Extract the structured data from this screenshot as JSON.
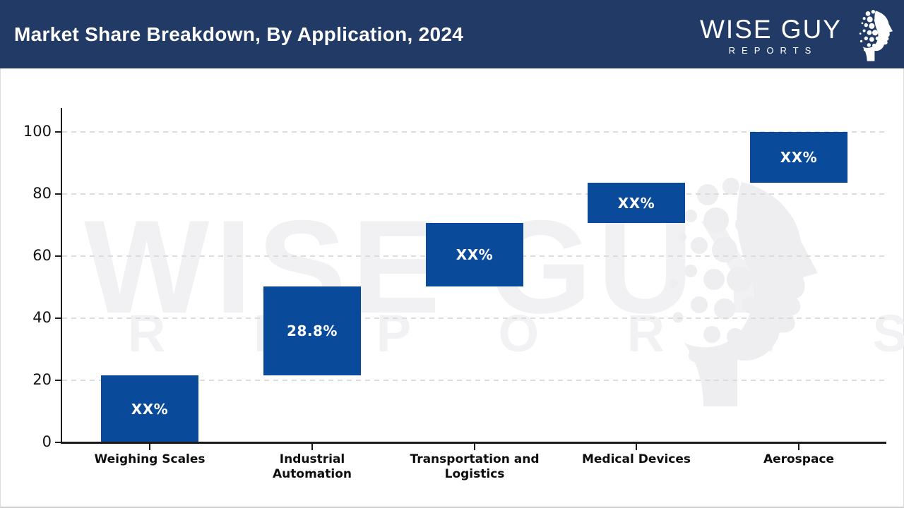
{
  "header": {
    "title": "Market Share Breakdown, By Application, 2024",
    "bg_color": "#213a66"
  },
  "logo": {
    "line1": "WISE GUY",
    "line2": "REPORTS"
  },
  "watermark": {
    "line1": "WISE GUY",
    "line2": "R E P O R T S"
  },
  "chart_data": {
    "type": "bar",
    "subtype": "waterfall",
    "title": "Market Share Breakdown, By Application, 2024",
    "xlabel": "",
    "ylabel": "",
    "ylim": [
      0,
      100
    ],
    "yticks": [
      0,
      20,
      40,
      60,
      80,
      100
    ],
    "grid": "horizontal dashed",
    "legend": "none",
    "bar_color": "#0a4a9b",
    "categories": [
      "Weighing Scales",
      "Industrial Automation",
      "Transportation and Logistics",
      "Medical Devices",
      "Aerospace"
    ],
    "category_display": [
      "Weighing Scales",
      "Industrial\nAutomation",
      "Transportation and\nLogistics",
      "Medical Devices",
      "Aerospace"
    ],
    "segments": [
      {
        "category": "Weighing Scales",
        "start": 0,
        "end": 21.5,
        "label": "XX%"
      },
      {
        "category": "Industrial Automation",
        "start": 21.5,
        "end": 50.3,
        "label": "28.8%"
      },
      {
        "category": "Transportation and Logistics",
        "start": 50.3,
        "end": 70.7,
        "label": "XX%"
      },
      {
        "category": "Medical Devices",
        "start": 70.7,
        "end": 83.6,
        "label": "XX%"
      },
      {
        "category": "Aerospace",
        "start": 83.6,
        "end": 100,
        "label": "XX%"
      }
    ]
  }
}
